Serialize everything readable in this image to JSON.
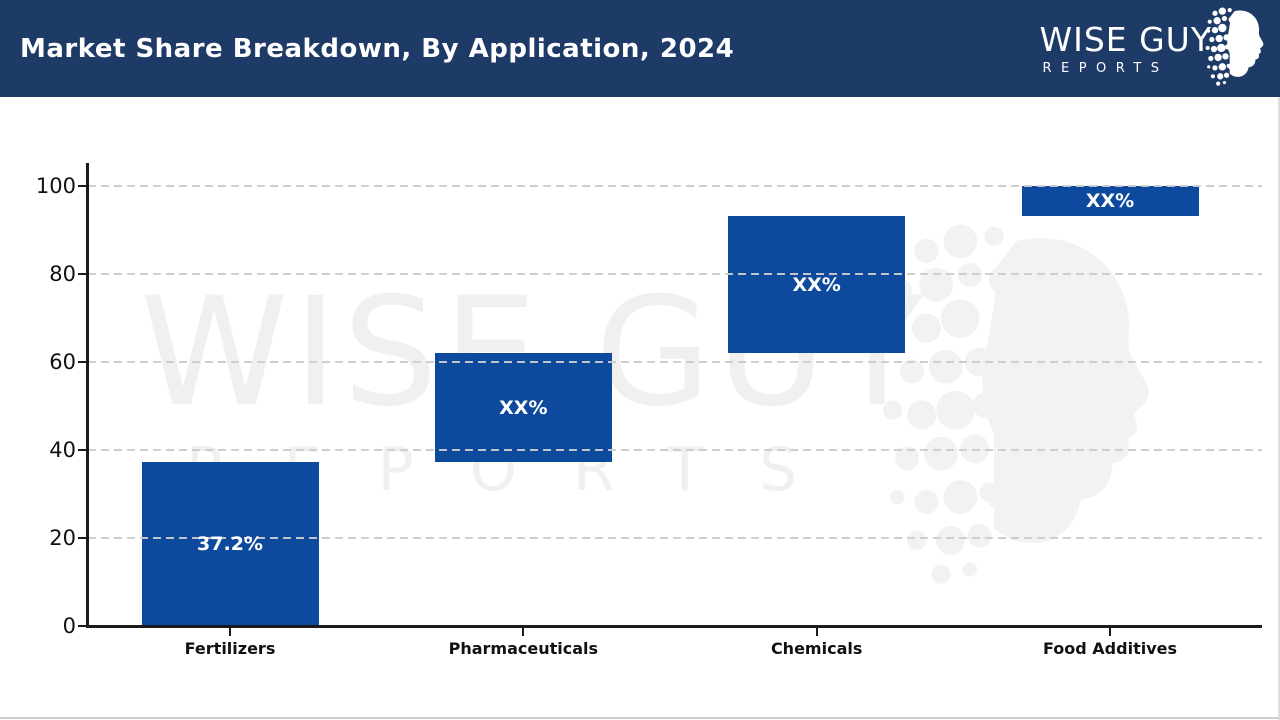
{
  "header": {
    "title": "Market Share Breakdown, By Application, 2024",
    "logo": {
      "line1": "WISE GUY",
      "line2": "REPORTS"
    }
  },
  "watermark": {
    "line1": "WISE GUY",
    "line2": "REPORTS"
  },
  "colors": {
    "header_bg": "#1e3a67",
    "bar": "#0d4a9e",
    "grid": "#cccccc",
    "axis": "#1a1a1a",
    "watermark": "#f0f0f0",
    "bar_label": "#ffffff"
  },
  "chart_data": {
    "type": "bar",
    "subtype": "waterfall",
    "title": "Market Share Breakdown, By Application, 2024",
    "xlabel": "",
    "ylabel": "",
    "categories": [
      "Fertilizers",
      "Pharmaceuticals",
      "Chemicals",
      "Food Additives"
    ],
    "segments": [
      {
        "category": "Fertilizers",
        "start": 0,
        "end": 37.2,
        "value_estimate": 37.2,
        "label": "37.2%"
      },
      {
        "category": "Pharmaceuticals",
        "start": 37.2,
        "end": 62,
        "value_estimate": 24.8,
        "label": "XX%"
      },
      {
        "category": "Chemicals",
        "start": 62,
        "end": 93.2,
        "value_estimate": 31.2,
        "label": "XX%"
      },
      {
        "category": "Food Additives",
        "start": 93.2,
        "end": 100,
        "value_estimate": 6.8,
        "label": "XX%"
      }
    ],
    "yticks": [
      0,
      20,
      40,
      60,
      80,
      100
    ],
    "ylim": [
      0,
      105
    ],
    "grid": "horizontal-dashed-over-bars",
    "legend": "none"
  }
}
